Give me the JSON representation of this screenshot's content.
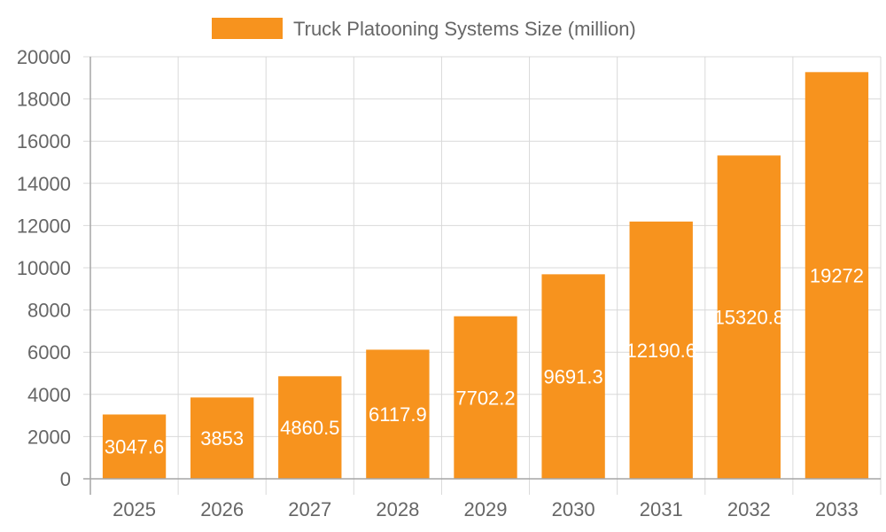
{
  "chart_data": {
    "type": "bar",
    "categories": [
      "2025",
      "2026",
      "2027",
      "2028",
      "2029",
      "2030",
      "2031",
      "2032",
      "2033"
    ],
    "series": [
      {
        "name": "Truck Platooning Systems Size (million)",
        "values": [
          3047.6,
          3853,
          4860.5,
          6117.9,
          7702.2,
          9691.3,
          12190.6,
          15320.8,
          19272
        ],
        "labels": [
          "3047.6",
          "3853",
          "4860.5",
          "6117.9",
          "7702.2",
          "9691.3",
          "12190.6",
          "15320.8",
          "19272"
        ]
      }
    ],
    "ylim": [
      0,
      20000
    ],
    "y_ticks": [
      "0",
      "2000",
      "4000",
      "6000",
      "8000",
      "10000",
      "12000",
      "14000",
      "16000",
      "18000",
      "20000"
    ],
    "grid": true,
    "legend_position": "top",
    "bar_color": "#F7931E"
  }
}
